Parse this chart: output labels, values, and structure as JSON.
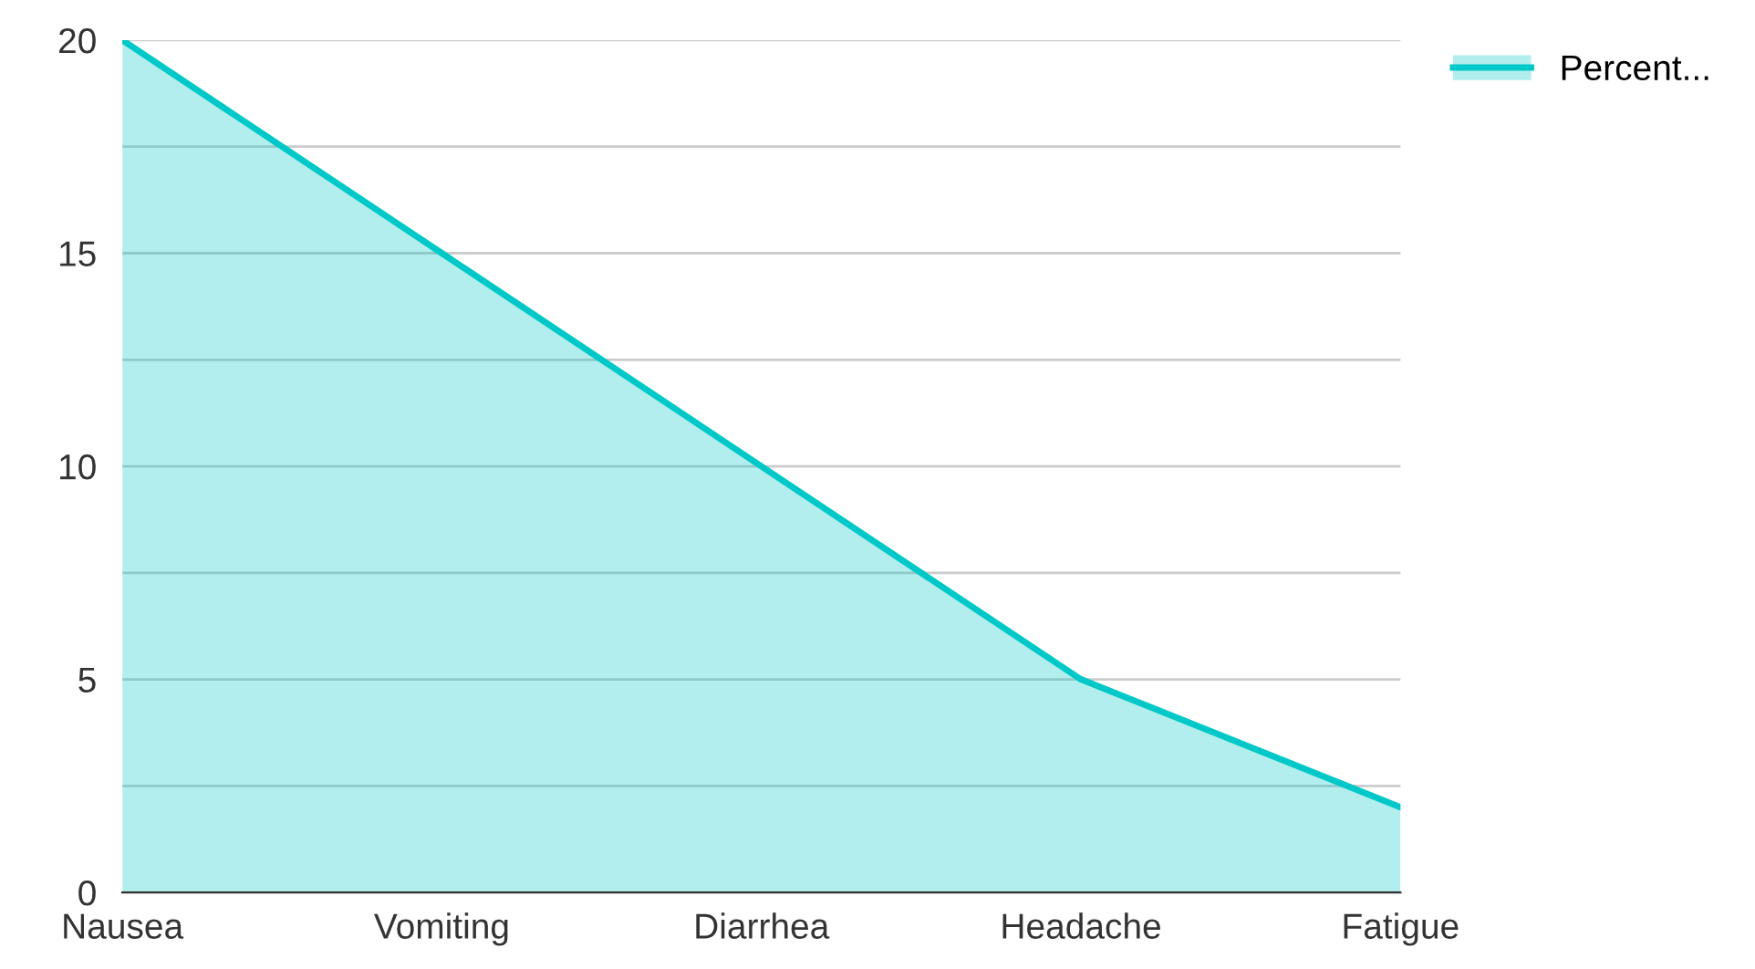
{
  "chart_data": {
    "type": "area",
    "categories": [
      "Nausea",
      "Vomiting",
      "Diarrhea",
      "Headache",
      "Fatigue"
    ],
    "series": [
      {
        "name": "Percent...",
        "color": "#00c8c8",
        "values": [
          20,
          15,
          10,
          5,
          2
        ]
      }
    ],
    "ylim": [
      0,
      20
    ],
    "yticks": [
      0,
      {
        "value": 2.5,
        "label": null
      },
      5,
      {
        "value": 7.5,
        "label": null
      },
      10,
      {
        "value": 12.5,
        "label": null
      },
      15,
      {
        "value": 17.5,
        "label": null
      },
      20
    ],
    "grid": "y",
    "legend": "top right"
  }
}
